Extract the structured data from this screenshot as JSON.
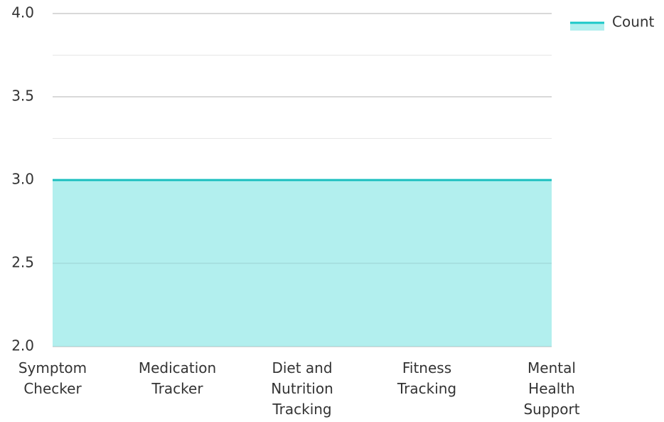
{
  "chart_data": {
    "type": "area",
    "categories": [
      "Symptom Checker",
      "Medication Tracker",
      "Diet and Nutrition Tracking",
      "Fitness Tracking",
      "Mental Health Support"
    ],
    "series": [
      {
        "name": "Count",
        "color": "#1cc8c8",
        "fill": "#b2efee",
        "values": [
          3,
          3,
          3,
          3,
          3
        ]
      }
    ],
    "ylim": [
      2,
      4
    ],
    "yticks": [
      {
        "value": 2,
        "label": "2.0"
      },
      {
        "value": 2.5,
        "label": "2.5"
      },
      {
        "value": 3,
        "label": "3.0"
      },
      {
        "value": 3.5,
        "label": "3.5"
      },
      {
        "value": 4,
        "label": "4.0"
      }
    ],
    "minor_yticks": [
      2.25,
      2.75,
      3.25,
      3.75
    ],
    "grid": true,
    "legend": "top-right"
  }
}
